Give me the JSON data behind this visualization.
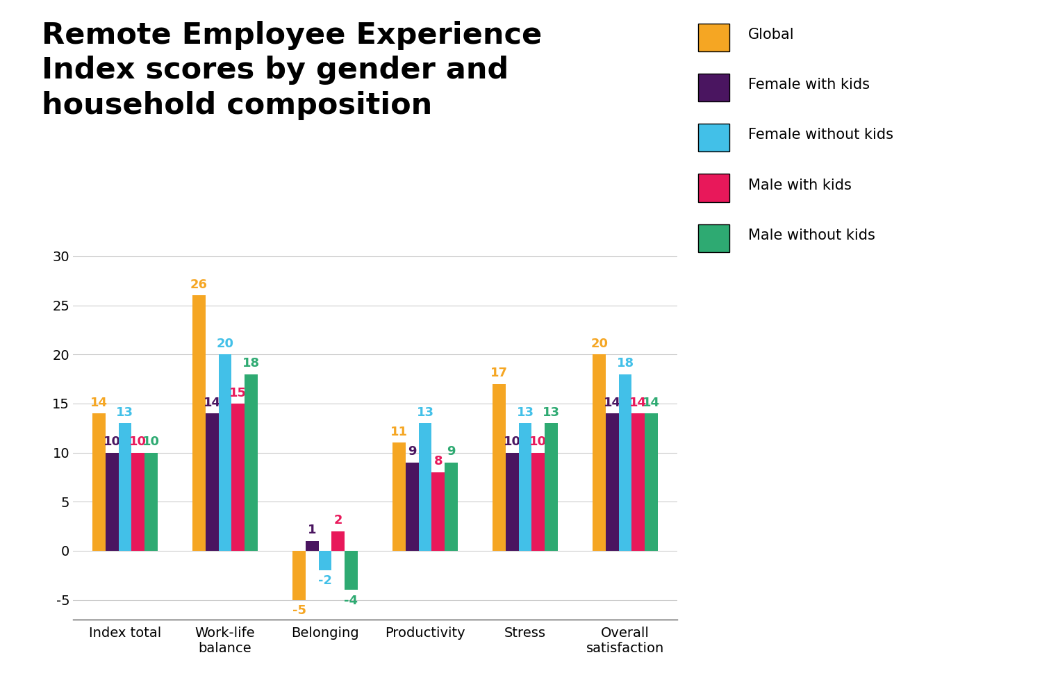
{
  "title": "Remote Employee Experience\nIndex scores by gender and\nhousehold composition",
  "categories": [
    "Index total",
    "Work-life\nbalance",
    "Belonging",
    "Productivity",
    "Stress",
    "Overall\nsatisfaction"
  ],
  "series": {
    "Global": [
      14,
      26,
      -5,
      11,
      17,
      20
    ],
    "Female with kids": [
      10,
      14,
      1,
      9,
      10,
      14
    ],
    "Female without kids": [
      13,
      20,
      -2,
      13,
      13,
      18
    ],
    "Male with kids": [
      10,
      15,
      2,
      8,
      10,
      14
    ],
    "Male without kids": [
      10,
      18,
      -4,
      9,
      13,
      14
    ]
  },
  "colors": {
    "Global": "#F5A623",
    "Female with kids": "#4A1560",
    "Female without kids": "#42C0E8",
    "Male with kids": "#E8185A",
    "Male without kids": "#2EAA72"
  },
  "ylim": [
    -7,
    32
  ],
  "yticks": [
    -5,
    0,
    5,
    10,
    15,
    20,
    25,
    30
  ],
  "background_color": "#FFFFFF",
  "title_fontsize": 31,
  "legend_fontsize": 15,
  "bar_label_fontsize": 13,
  "axis_label_fontsize": 14
}
